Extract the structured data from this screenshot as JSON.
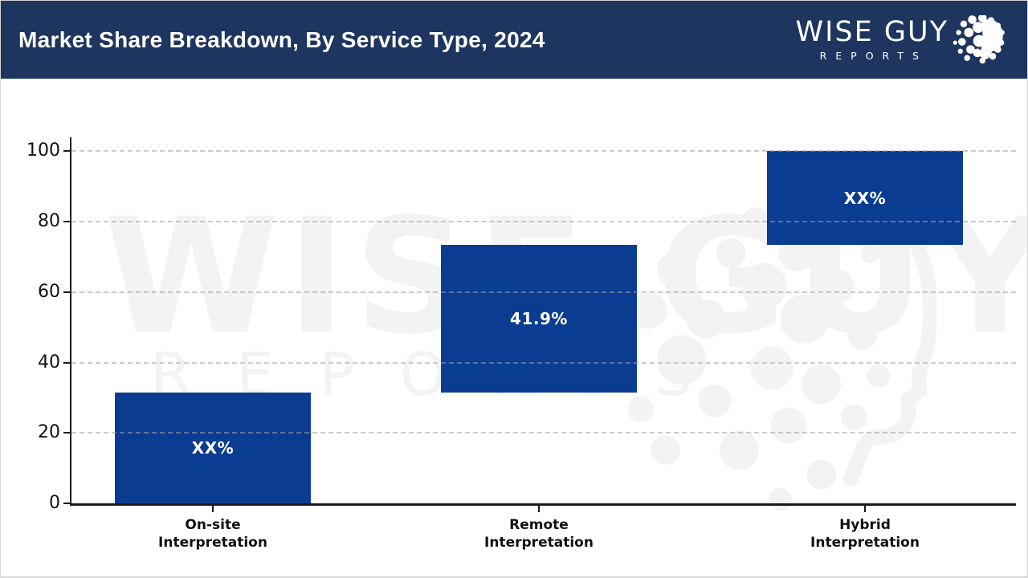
{
  "header": {
    "title": "Market Share Breakdown, By Service Type, 2024",
    "logo": {
      "wordmark": "WISE GUY",
      "subtext": "REPORTS"
    }
  },
  "watermark": {
    "line1": "WISE GUY",
    "line2": "REPORTS"
  },
  "colors": {
    "header_bg": "#1e355f",
    "bar": "#0a3d92",
    "axis": "#1a1a1a",
    "grid": "#d9d9d9",
    "bar_label_text": "#ffffff",
    "title_text": "#ffffff"
  },
  "chart_data": {
    "type": "bar",
    "subtype": "waterfall-stacked-percent",
    "title": "Market Share Breakdown, By Service Type, 2024",
    "categories": [
      "On-site\nInterpretation",
      "Remote\nInterpretation",
      "Hybrid\nInterpretation"
    ],
    "segments": [
      {
        "category": "On-site Interpretation",
        "start": 0,
        "end": 31.5,
        "height": 31.5,
        "label": "XX%"
      },
      {
        "category": "Remote Interpretation",
        "start": 31.5,
        "end": 73.4,
        "height": 41.9,
        "label": "41.9%"
      },
      {
        "category": "Hybrid Interpretation",
        "start": 73.4,
        "end": 100,
        "height": 26.6,
        "label": "XX%"
      }
    ],
    "yticks": [
      0,
      20,
      40,
      60,
      80,
      100
    ],
    "ylim": [
      0,
      104
    ],
    "xlabel": "",
    "ylabel": "",
    "legend": null,
    "grid": "horizontal-dashed",
    "bar_color": "#0a3d92"
  }
}
